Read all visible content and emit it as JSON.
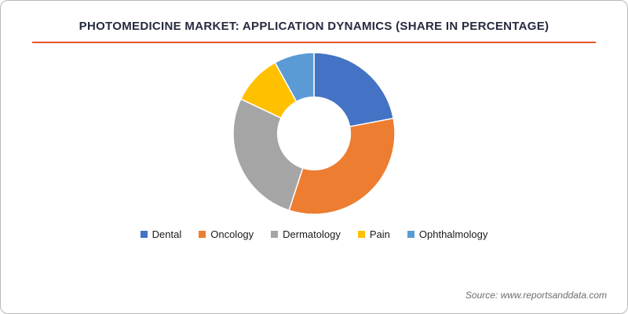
{
  "header": {
    "underline_color": "#e8542c"
  },
  "footer": {
    "source": "Source: www.reportsanddata.com"
  },
  "chart_data": {
    "type": "pie",
    "subtype": "donut",
    "title": "PHOTOMEDICINE MARKET: APPLICATION DYNAMICS (SHARE IN PERCENTAGE)",
    "categories": [
      "Dental",
      "Oncology",
      "Dermatology",
      "Pain",
      "Ophthalmology"
    ],
    "values": [
      22,
      33,
      27,
      10,
      8
    ],
    "unit": "percent",
    "colors": [
      "#4472C4",
      "#ED7D31",
      "#A5A5A5",
      "#FFC000",
      "#5B9BD5"
    ],
    "start_angle_deg": 0,
    "direction": "clockwise",
    "inner_radius_ratio": 0.45,
    "legend_position": "bottom",
    "data_labels": false
  }
}
